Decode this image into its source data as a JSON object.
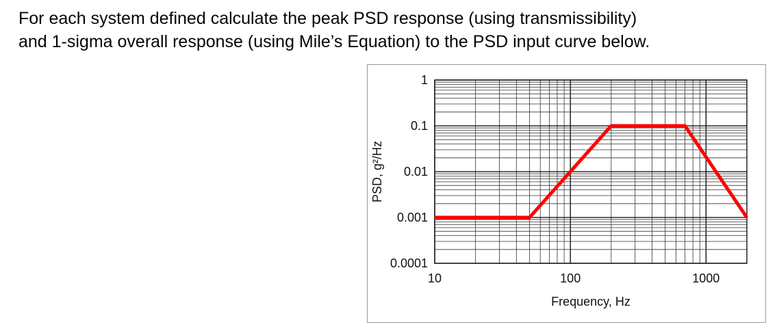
{
  "title_lines": [
    "For each system defined calculate the peak PSD response (using transmissibility)",
    "and 1-sigma overall response (using Mile’s Equation) to the PSD input curve below."
  ],
  "chart_data": {
    "type": "line",
    "title": "",
    "xlabel": "Frequency, Hz",
    "ylabel": "PSD, g²/Hz",
    "x_scale": "log",
    "y_scale": "log",
    "xlim": [
      10,
      2000
    ],
    "ylim": [
      0.0001,
      1
    ],
    "grid": "log major and minor, both axes",
    "legend": false,
    "x_ticks": [
      {
        "value": 10,
        "label": "10"
      },
      {
        "value": 100,
        "label": "100"
      },
      {
        "value": 1000,
        "label": "1000"
      }
    ],
    "y_ticks": [
      {
        "value": 1,
        "label": "1"
      },
      {
        "value": 0.1,
        "label": "0.1"
      },
      {
        "value": 0.01,
        "label": "0.01"
      },
      {
        "value": 0.001,
        "label": "0.001"
      },
      {
        "value": 0.0001,
        "label": "0.0001"
      }
    ],
    "series": [
      {
        "name": "PSD input curve",
        "color": "#ff0000",
        "stroke_width": 5,
        "points": [
          [
            10,
            0.001
          ],
          [
            50,
            0.001
          ],
          [
            200,
            0.1
          ],
          [
            700,
            0.1
          ],
          [
            2000,
            0.001
          ]
        ]
      }
    ],
    "colors": {
      "grid_minor": "#333333",
      "grid_major": "#000000",
      "frame": "#000000",
      "text": "#111111"
    }
  }
}
